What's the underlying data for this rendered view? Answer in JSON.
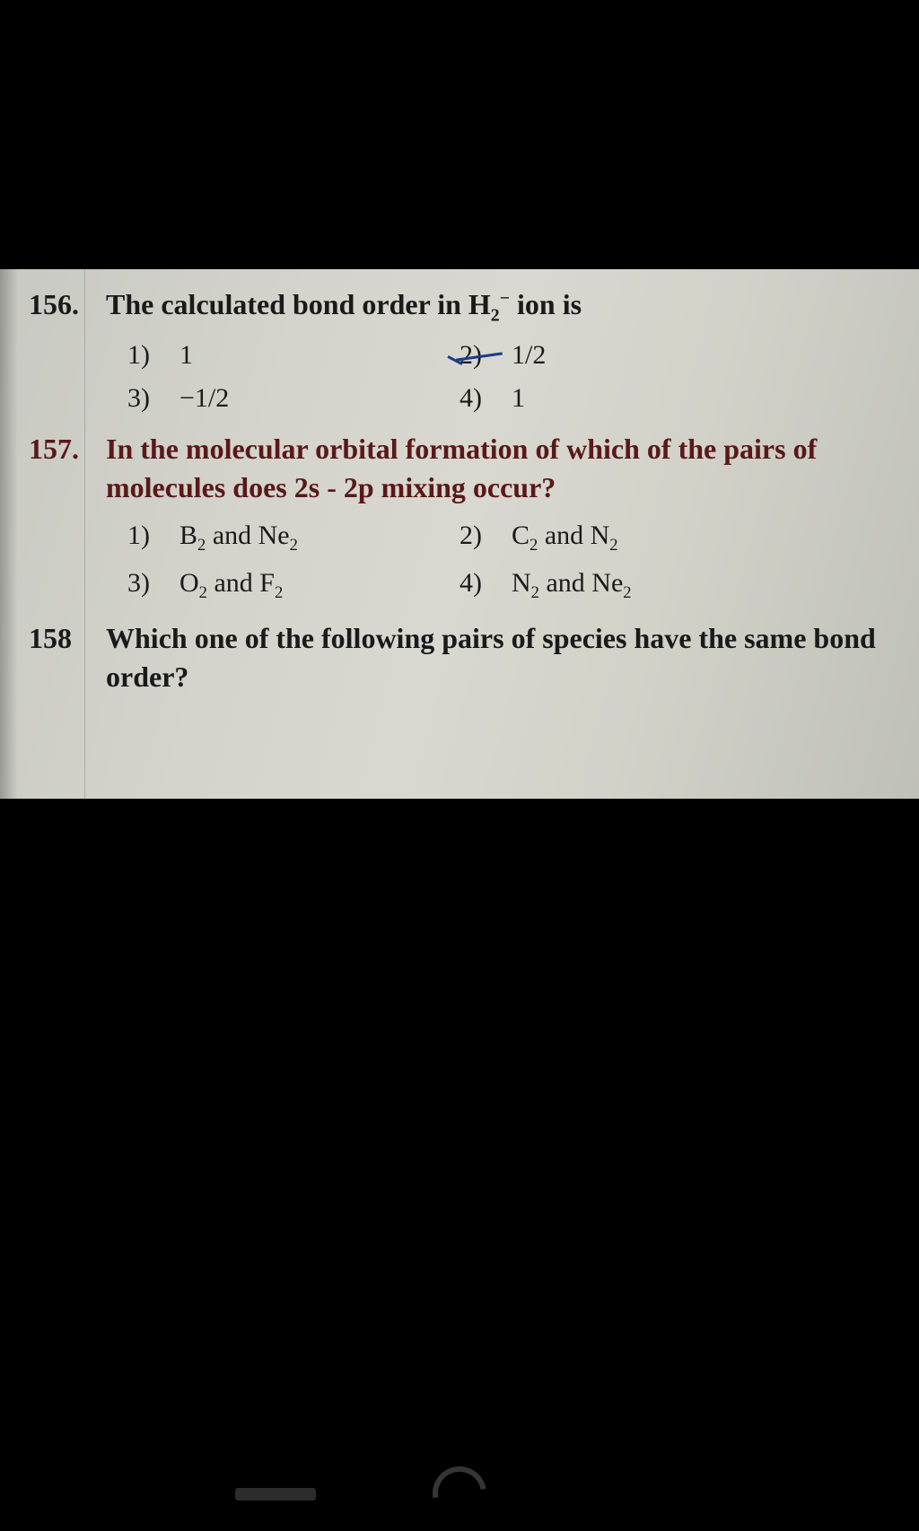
{
  "colors": {
    "page_bg": "#000000",
    "paper_bg": "#d4d4cc",
    "text": "#1a1a1a",
    "heading_accent": "#5a1818",
    "pen_mark": "#1a3a8a"
  },
  "typography": {
    "stem_fontsize_pt": 24,
    "stem_weight": "bold",
    "option_fontsize_pt": 22,
    "font_family": "serif"
  },
  "questions": [
    {
      "number": "156.",
      "stem_html": "The calculated bond order in H<span class='sub'>2</span><span class='sup'>−</span> ion is",
      "options": [
        {
          "num": "1)",
          "html": "1"
        },
        {
          "num": "2)",
          "html": "1/2",
          "struck": true
        },
        {
          "num": "3)",
          "html": "−1/2"
        },
        {
          "num": "4)",
          "html": "1"
        }
      ]
    },
    {
      "number": "157.",
      "accent": true,
      "stem_html": "In the molecular orbital formation of which of the pairs of molecules does 2s - 2p mixing occur?",
      "options": [
        {
          "num": "1)",
          "html": "B<span class='sub'>2</span> and Ne<span class='sub'>2</span>"
        },
        {
          "num": "2)",
          "html": "C<span class='sub'>2</span> and N<span class='sub'>2</span>"
        },
        {
          "num": "3)",
          "html": "O<span class='sub'>2</span> and F<span class='sub'>2</span>"
        },
        {
          "num": "4)",
          "html": "N<span class='sub'>2</span> and Ne<span class='sub'>2</span>"
        }
      ]
    },
    {
      "number": "158",
      "stem_html": "Which one of the following pairs of species have the same bond order?",
      "options": []
    }
  ]
}
